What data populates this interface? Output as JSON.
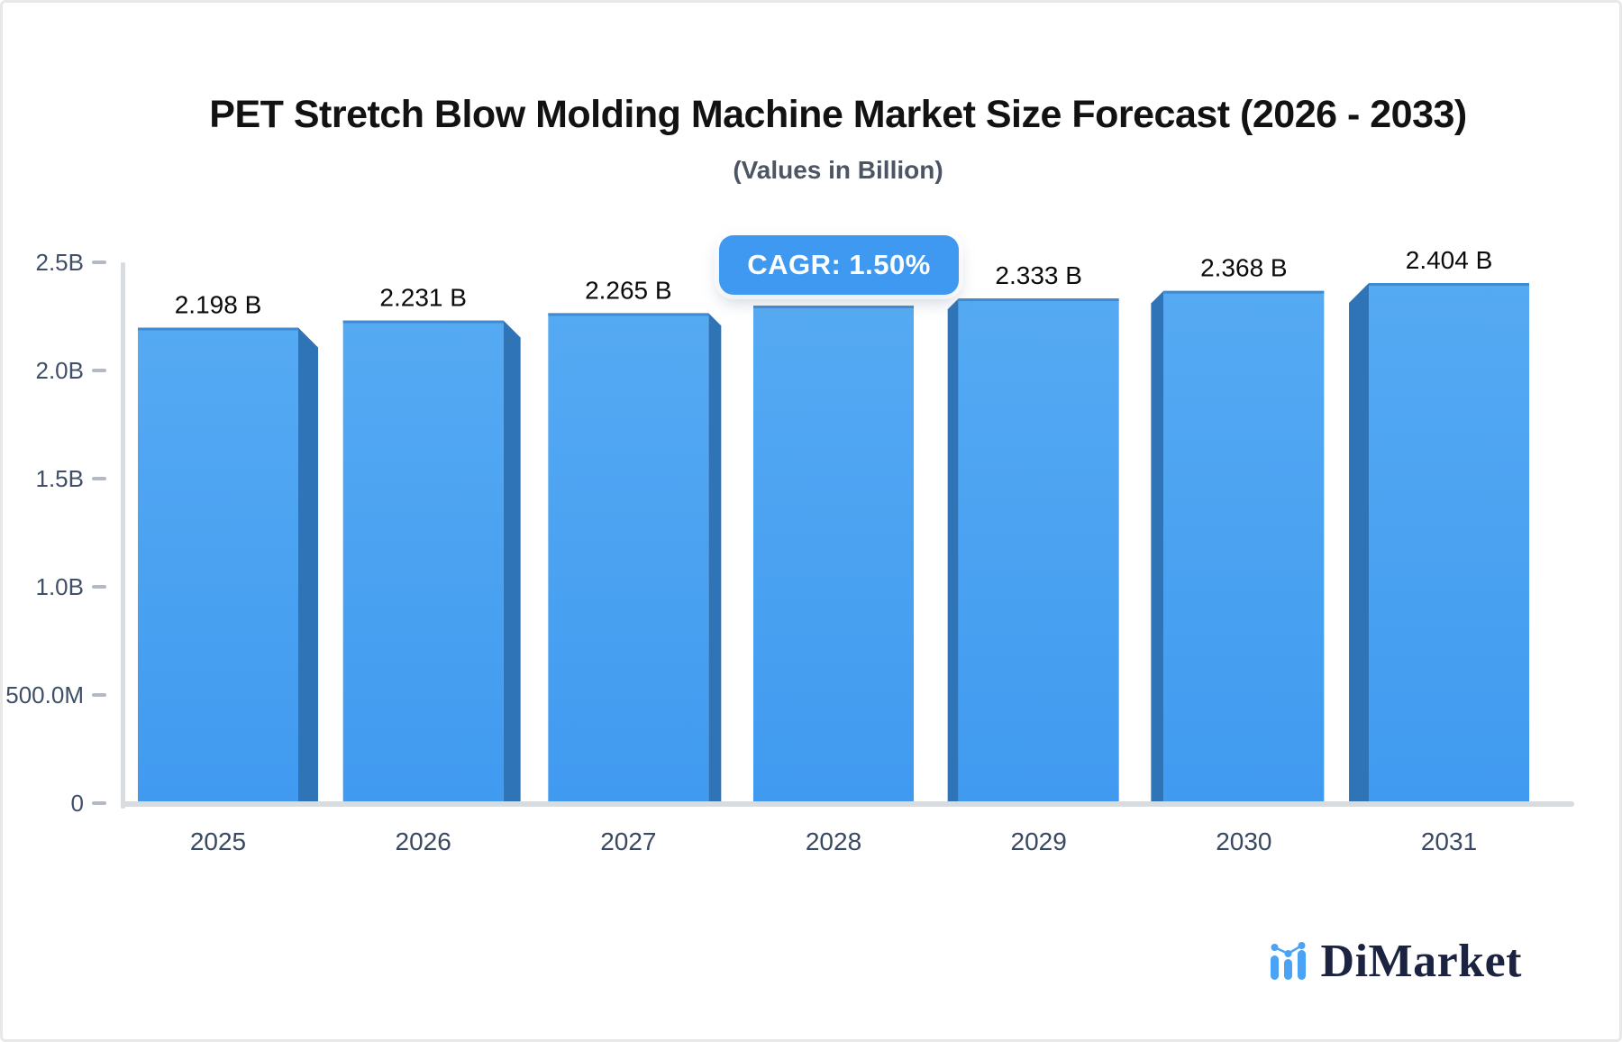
{
  "header": {
    "title": "PET Stretch Blow Molding Machine Market Size Forecast (2026 - 2033)",
    "subtitle": "(Values in Billion)"
  },
  "badge": {
    "label": "CAGR: 1.50%",
    "bg_color": "#3f99f0",
    "text_color": "#ffffff"
  },
  "logo": {
    "text": "DiMarket",
    "icon": "bar-chart-trend-icon",
    "icon_color": "#4aa3f5",
    "text_color": "#1c2340"
  },
  "chart_data": {
    "type": "bar",
    "title": "PET Stretch Blow Molding Machine Market Size Forecast (2026 - 2033)",
    "subtitle": "(Values in Billion)",
    "annotation": "CAGR: 1.50%",
    "categories": [
      "2025",
      "2026",
      "2027",
      "2028",
      "2029",
      "2030",
      "2031"
    ],
    "values": [
      2.198,
      2.231,
      2.265,
      2.3,
      2.333,
      2.368,
      2.404
    ],
    "bar_labels": [
      "2.198 B",
      "2.231 B",
      "2.265 B",
      "",
      "2.333 B",
      "2.368 B",
      "2.404 B"
    ],
    "xlabel": "",
    "ylabel": "",
    "ylim": [
      0,
      2.5
    ],
    "y_ticks": [
      {
        "value": 0.0,
        "label": "0"
      },
      {
        "value": 0.5,
        "label": "500.0M"
      },
      {
        "value": 1.0,
        "label": "1.0B"
      },
      {
        "value": 1.5,
        "label": "1.5B"
      },
      {
        "value": 2.0,
        "label": "2.0B"
      },
      {
        "value": 2.5,
        "label": "2.5B"
      }
    ],
    "grid": false,
    "legend": false,
    "colors": {
      "bar_face_top": "#55aaf2",
      "bar_face_bottom": "#409af0",
      "bar_side": "#2e74b6",
      "bar_top_edge": "#3e86cd",
      "axis": "#d9dcdf",
      "tick_dash": "#b4bac3",
      "tick_label": "#3f4f68",
      "x_label": "#3a4960",
      "value_label": "#0b0b0b"
    }
  }
}
